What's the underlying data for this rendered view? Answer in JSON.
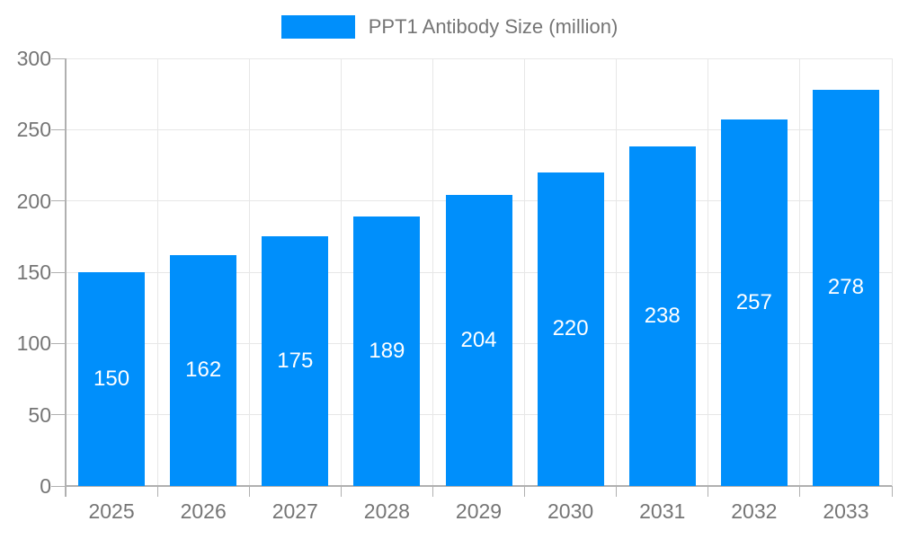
{
  "legend": {
    "label": "PPT1 Antibody Size (million)",
    "swatch_color": "#008FFB"
  },
  "colors": {
    "bar": "#008FFB",
    "grid_line": "#e7e7e7",
    "axis_line": "#b0b0b0",
    "tick_line": "#b0b0b0",
    "axis_text": "#757575",
    "legend_text": "#757575",
    "value_text": "#ffffff",
    "background": "#ffffff"
  },
  "chart_data": {
    "type": "bar",
    "title": "PPT1 Antibody Size (million)",
    "categories": [
      "2025",
      "2026",
      "2027",
      "2028",
      "2029",
      "2030",
      "2031",
      "2032",
      "2033"
    ],
    "values": [
      150,
      162,
      175,
      189,
      204,
      220,
      238,
      257,
      278
    ],
    "series": [
      {
        "name": "PPT1 Antibody Size (million)",
        "values": [
          150,
          162,
          175,
          189,
          204,
          220,
          238,
          257,
          278
        ]
      }
    ],
    "xlabel": "",
    "ylabel": "",
    "ylim": [
      0,
      300
    ],
    "y_ticks": [
      0,
      50,
      100,
      150,
      200,
      250,
      300
    ],
    "grid": true,
    "legend_position": "top",
    "value_labels": "inside-center",
    "bar_color": "#008FFB"
  }
}
